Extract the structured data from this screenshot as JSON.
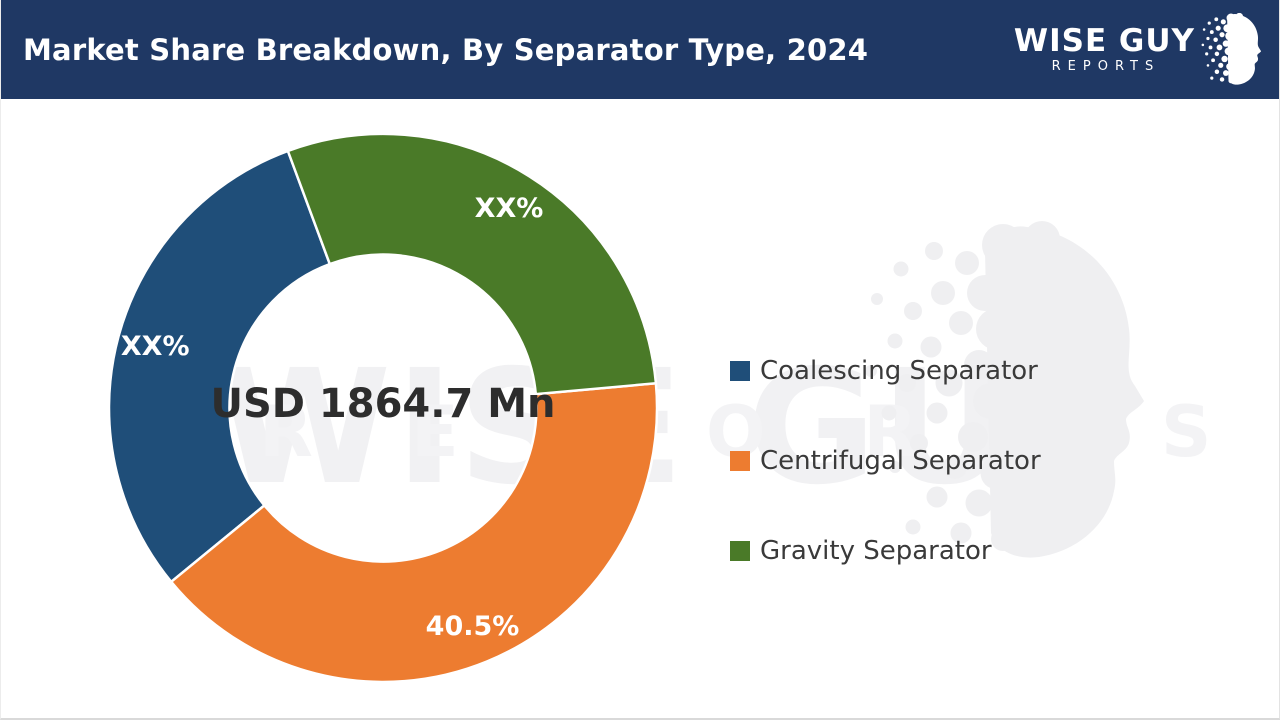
{
  "header": {
    "title": "Market Share Breakdown, By Separator Type, 2024",
    "logo": {
      "line1": "WISE GUY",
      "line2": "REPORTS"
    }
  },
  "watermark": {
    "line1": "WISE GUY",
    "line2": "REPORTS"
  },
  "colors": {
    "header_bg": "#1f3864",
    "legend_text": "#3a3a3a",
    "center_text": "#2d2d2d",
    "watermark": "#f1f1f3",
    "segment_gap_stroke": "#ffffff"
  },
  "chart_data": {
    "type": "donut",
    "title": "Market Share Breakdown, By Separator Type, 2024",
    "center_label": "USD 1864.7 Mn",
    "total_value": "USD 1864.7 Mn",
    "legend_position": "right",
    "start_angle_deg": 110.3,
    "direction": "counterclockwise",
    "donut_hole_ratio": 0.56,
    "segments": [
      {
        "label": "Coalescing Separator",
        "value_label": "XX%",
        "share_pct_for_render": 30.3,
        "color": "#1f4e79"
      },
      {
        "label": "Centrifugal Separator",
        "value_label": "40.5%",
        "share_pct_for_render": 40.5,
        "color": "#ed7c30"
      },
      {
        "label": "Gravity Separator",
        "value_label": "XX%",
        "share_pct_for_render": 29.2,
        "color": "#4a7a28"
      }
    ]
  }
}
